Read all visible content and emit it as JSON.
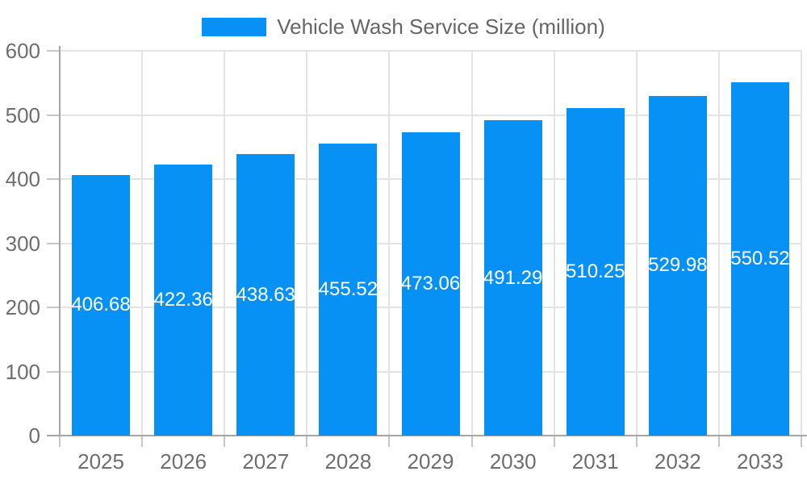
{
  "legend": {
    "label": "Vehicle Wash Service Size (million)"
  },
  "chart_data": {
    "type": "bar",
    "title": "Vehicle Wash Service Size (million)",
    "categories": [
      "2025",
      "2026",
      "2027",
      "2028",
      "2029",
      "2030",
      "2031",
      "2032",
      "2033"
    ],
    "series": [
      {
        "name": "Vehicle Wash Service Size (million)",
        "values": [
          406.68,
          422.36,
          438.63,
          455.52,
          473.06,
          491.29,
          510.25,
          529.98,
          550.52
        ]
      }
    ],
    "value_labels": [
      "406.68",
      "422.36",
      "438.63",
      "455.52",
      "473.06",
      "491.29",
      "510.25",
      "529.98",
      "550.52"
    ],
    "xlabel": "",
    "ylabel": "",
    "ylim": [
      0,
      600
    ],
    "yticks": [
      0,
      100,
      200,
      300,
      400,
      500,
      600
    ],
    "grid": true,
    "legend_position": "top",
    "colors": {
      "bar": "#0891f5",
      "value_label": "#ffffff",
      "axis_label": "#6e6e6e",
      "title": "#666666",
      "axis_line": "#a6a6a6",
      "tick": "#c6c6c6",
      "gridline": "#e3e3e3",
      "background": "#ffffff"
    }
  }
}
